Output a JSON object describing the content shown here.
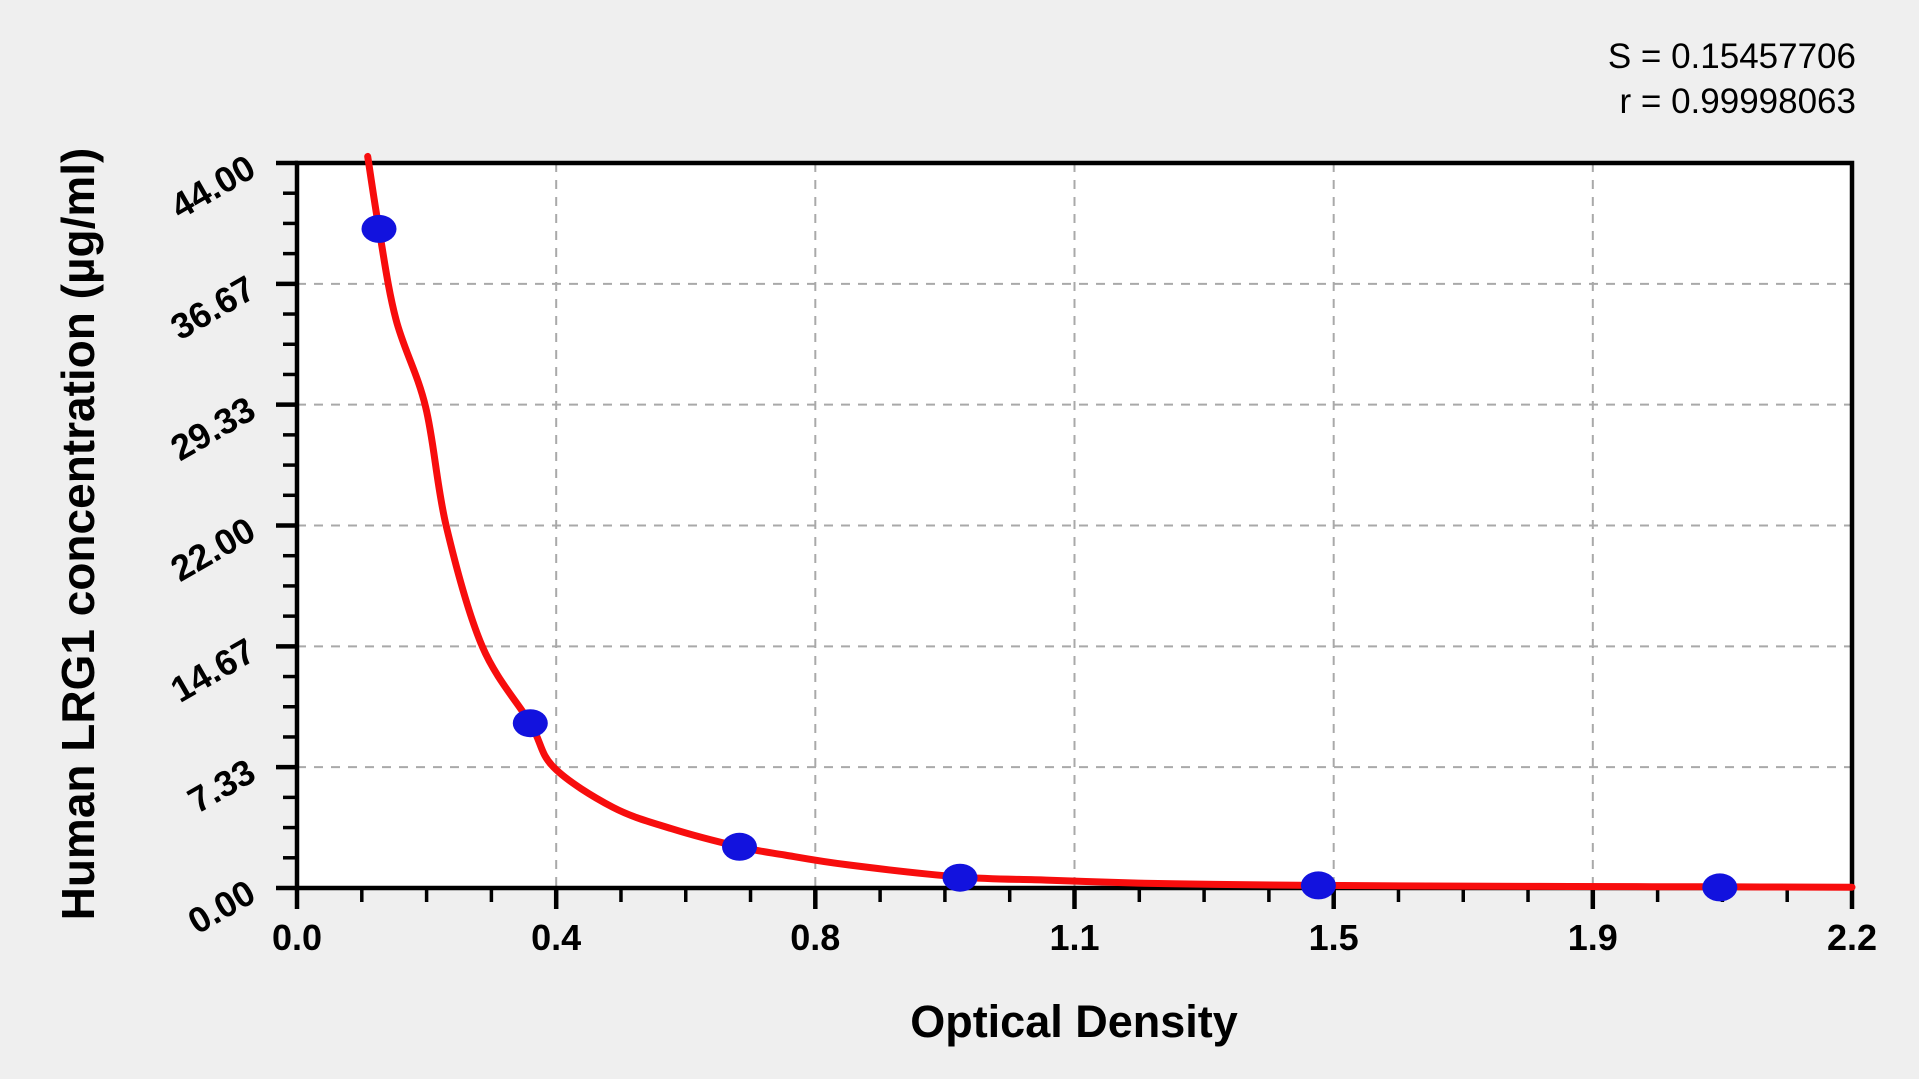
{
  "figure": {
    "background_color": "#EFEFEF",
    "plot_background_color": "#FFFFFF",
    "frame_color": "#000000",
    "grid_color": "#A9A9A9"
  },
  "chart_data": {
    "type": "scatter",
    "title": "",
    "xlabel": "Optical Density",
    "ylabel": "Human LRG1 concentration (µg/ml)",
    "xlim": [
      0,
      2.2
    ],
    "ylim": [
      0,
      44
    ],
    "grid": "dashed horizontal and vertical lines at interior major ticks",
    "legend_position": "none",
    "x_tick_values": [
      0,
      0.3667,
      0.7333,
      1.1,
      1.4667,
      1.8333,
      2.2
    ],
    "x_tick_labels": [
      "0.0",
      "0.4",
      "0.8",
      "1.1",
      "1.5",
      "1.9",
      "2.2"
    ],
    "y_tick_values": [
      0,
      7.3333,
      14.6667,
      22,
      29.3333,
      36.6667,
      44
    ],
    "y_tick_labels": [
      "0.00",
      "7.33",
      "14.67",
      "22.00",
      "29.33",
      "36.67",
      "44.00"
    ],
    "minor_ticks_between_majors": 3,
    "series": [
      {
        "name": "standard-points",
        "type": "scatter",
        "color": "#1212DE",
        "points": [
          [
            0.116,
            40
          ],
          [
            0.33,
            10
          ],
          [
            0.626,
            2.5
          ],
          [
            0.938,
            0.625
          ],
          [
            1.445,
            0.156
          ],
          [
            2.013,
            0.039
          ]
        ]
      },
      {
        "name": "fitted-curve",
        "type": "line",
        "color": "#F70D0D",
        "points": [
          [
            0.1,
            44.4
          ],
          [
            0.116,
            40
          ],
          [
            0.14,
            34.5
          ],
          [
            0.182,
            29.2
          ],
          [
            0.211,
            22.0
          ],
          [
            0.262,
            14.67
          ],
          [
            0.33,
            10.0
          ],
          [
            0.363,
            7.33
          ],
          [
            0.447,
            4.9
          ],
          [
            0.53,
            3.6
          ],
          [
            0.626,
            2.5
          ],
          [
            0.69,
            2.0
          ],
          [
            0.78,
            1.4
          ],
          [
            0.938,
            0.67
          ],
          [
            1.06,
            0.48
          ],
          [
            1.19,
            0.3
          ],
          [
            1.3,
            0.22
          ],
          [
            1.445,
            0.16
          ],
          [
            1.6,
            0.12
          ],
          [
            1.8,
            0.09
          ],
          [
            2.013,
            0.07
          ],
          [
            2.2,
            0.05
          ]
        ]
      }
    ],
    "annotations": {
      "s_label": "S = 0.15457706",
      "r_label": "r = 0.99998063"
    }
  }
}
